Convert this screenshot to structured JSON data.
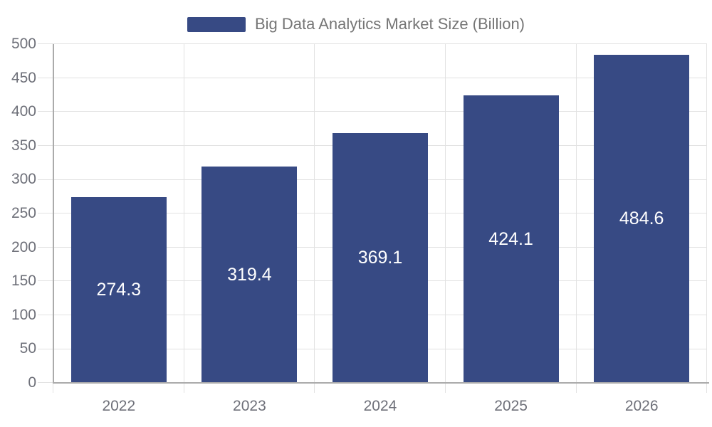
{
  "chart_data": {
    "type": "bar",
    "title": "Big Data Analytics Market Size (Billion)",
    "series_name": "Big Data Analytics Market Size (Billion)",
    "categories": [
      "2022",
      "2023",
      "2024",
      "2025",
      "2026"
    ],
    "values": [
      274.3,
      319.4,
      369.1,
      424.1,
      484.6
    ],
    "value_labels": [
      "274.3",
      "319.4",
      "369.1",
      "424.1",
      "484.6"
    ],
    "xlabel": "",
    "ylabel": "",
    "ylim": [
      0,
      500
    ],
    "yticks": [
      0,
      50,
      100,
      150,
      200,
      250,
      300,
      350,
      400,
      450,
      500
    ],
    "grid": true,
    "legend_position": "top-center",
    "bar_labels_visible": true
  },
  "style": {
    "bar_color": "#374A84",
    "bar_label_color": "#FFFFFF",
    "grid_color": "#E2E2E2",
    "axis_line_color": "#ABABAB",
    "tick_label_color": "#6E7079",
    "legend_text_color": "#757575",
    "background_color": "#FFFFFF"
  }
}
